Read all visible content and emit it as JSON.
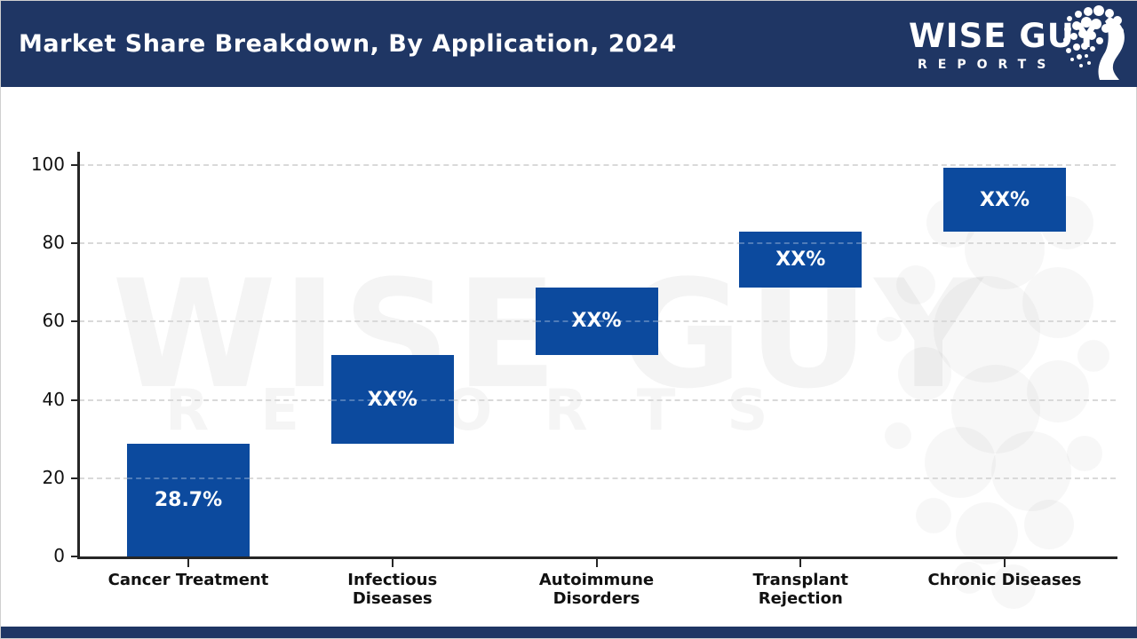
{
  "header": {
    "title": "Market Share Breakdown, By Application, 2024",
    "background": "#1f3664",
    "logo": {
      "line1": "WISE GUY",
      "line2": "REPORTS"
    }
  },
  "watermark": {
    "line1": "WISE GUY",
    "line2": "REPORTS"
  },
  "chart_data": {
    "type": "bar",
    "subtype": "floating-waterfall",
    "title": "Market Share Breakdown, By Application, 2024",
    "categories": [
      "Cancer Treatment",
      "Infectious\nDiseases",
      "Autoimmune\nDisorders",
      "Transplant\nRejection",
      "Chronic Diseases"
    ],
    "bar_starts": [
      0,
      28.7,
      51.5,
      68.8,
      82.9
    ],
    "bar_ends": [
      28.7,
      51.5,
      68.8,
      82.9,
      99.4
    ],
    "increments": [
      28.7,
      22.8,
      17.3,
      14.1,
      16.5
    ],
    "bar_labels": [
      "28.7%",
      "XX%",
      "XX%",
      "XX%",
      "XX%"
    ],
    "yticks": [
      0,
      20,
      40,
      60,
      80,
      100
    ],
    "ylim": [
      0,
      103
    ],
    "grid": "dashed-y",
    "legend": "none",
    "bar_color": "#0c4a9e",
    "bar_label_color": "#ffffff",
    "axis_color": "#262626",
    "gridline_color": "#d9d9d9"
  },
  "footer": {
    "background": "#1f3664"
  }
}
